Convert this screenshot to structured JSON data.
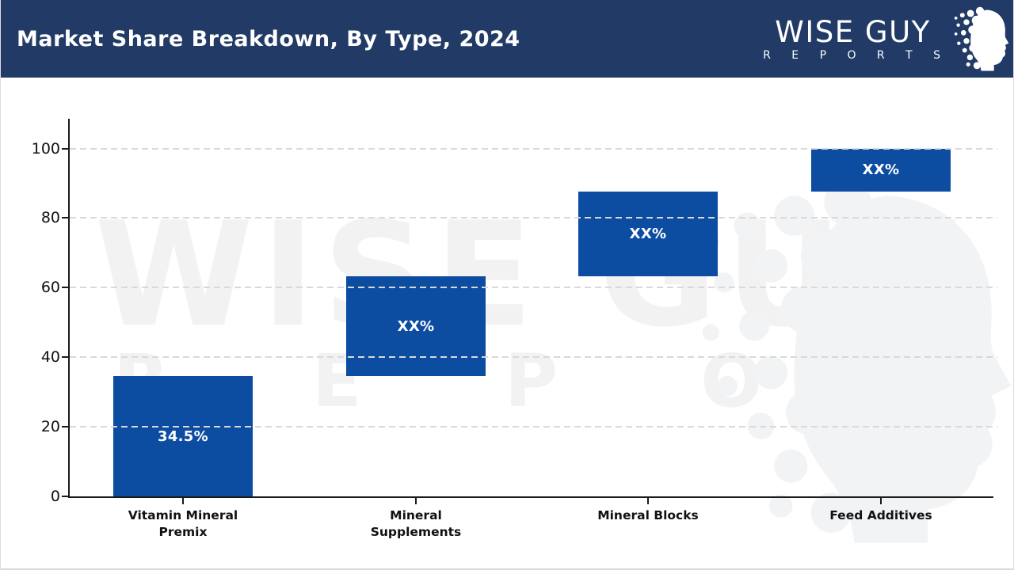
{
  "header": {
    "title": "Market Share Breakdown, By Type, 2024",
    "bg_color": "#213a66",
    "logo": {
      "line1": "WISE GUY",
      "line2": "R E P O R T S"
    }
  },
  "watermark": {
    "line1": "WISE GUY",
    "line2": "R E P O R T S"
  },
  "chart_data": {
    "type": "bar",
    "subtype": "waterfall (floating cumulative segments)",
    "title": "Market Share Breakdown, By Type, 2024",
    "categories": [
      "Vitamin Mineral Premix",
      "Mineral Supplements",
      "Mineral Blocks",
      "Feed Additives"
    ],
    "category_lines": [
      [
        "Vitamin Mineral",
        "Premix"
      ],
      [
        "Mineral",
        "Supplements"
      ],
      [
        "Mineral Blocks"
      ],
      [
        "Feed Additives"
      ]
    ],
    "segments": [
      {
        "category": "Vitamin Mineral Premix",
        "start": 0,
        "end": 34.5,
        "label": "34.5%"
      },
      {
        "category": "Mineral Supplements",
        "start": 34.5,
        "end": 63.3,
        "label": "XX%"
      },
      {
        "category": "Mineral Blocks",
        "start": 63.3,
        "end": 87.5,
        "label": "XX%"
      },
      {
        "category": "Feed Additives",
        "start": 87.5,
        "end": 100,
        "label": "XX%"
      }
    ],
    "values_implied_pct": [
      34.5,
      28.8,
      24.2,
      12.5
    ],
    "ylim": [
      0,
      100
    ],
    "yticks": [
      0,
      20,
      40,
      60,
      80,
      100
    ],
    "xlabel": "",
    "ylabel": "",
    "bar_color": "#0c4da2",
    "grid": "horizontal dashed lines, drawn above bars",
    "legend": "none"
  }
}
